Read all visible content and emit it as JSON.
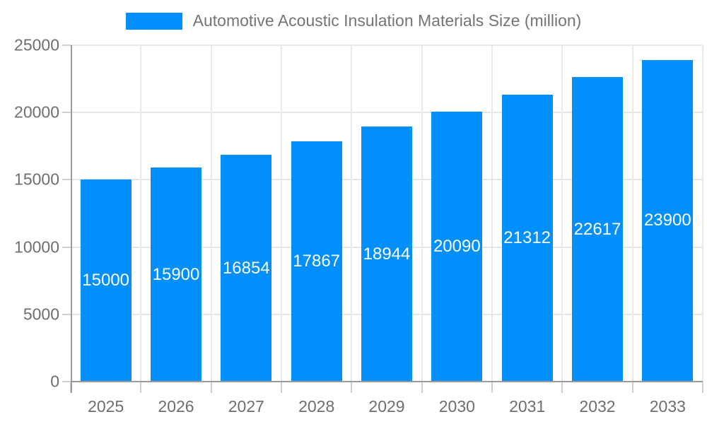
{
  "chart_data": {
    "type": "bar",
    "title": "Automotive Acoustic Insulation Materials Size (million)",
    "categories": [
      "2025",
      "2026",
      "2027",
      "2028",
      "2029",
      "2030",
      "2031",
      "2032",
      "2033"
    ],
    "values": [
      15000,
      15900,
      16854,
      17867,
      18944,
      20090,
      21312,
      22617,
      23900
    ],
    "xlabel": "",
    "ylabel": "",
    "ylim": [
      0,
      25000
    ],
    "yticks": [
      0,
      5000,
      10000,
      15000,
      20000,
      25000
    ],
    "grid": "on",
    "legend_position": "top",
    "bar_color": "#008FFB",
    "bar_label_color": "#ffffff",
    "axis_text_color": "#6e6e6e",
    "gridline_color": "#e6e6e6",
    "axis_line_color": "#9b9b9b"
  }
}
